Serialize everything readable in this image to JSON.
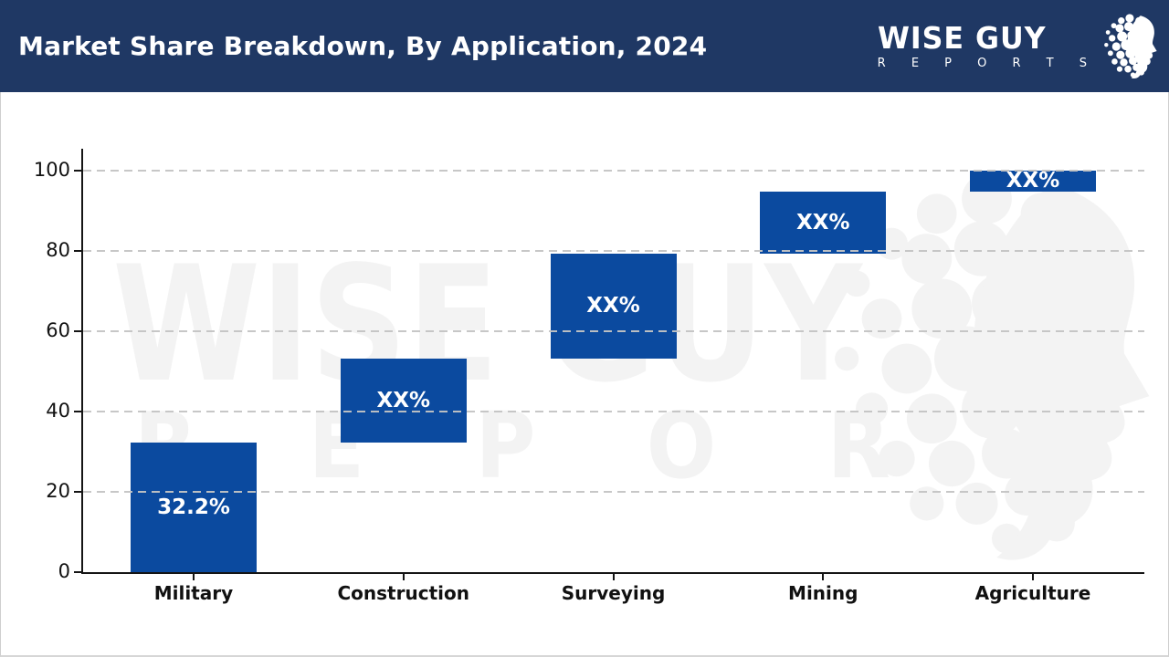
{
  "header": {
    "title": "Market Share Breakdown, By Application, 2024",
    "bg_color": "#1f3864",
    "logo": {
      "line1": "WISE GUY",
      "line2": "R E P O R T S"
    }
  },
  "watermark": {
    "line1": "WISE GUY",
    "line2": "R E P O R T S"
  },
  "chart_data": {
    "type": "bar",
    "subtype": "waterfall",
    "title": "Market Share Breakdown, By Application, 2024",
    "categories": [
      "Military",
      "Construction",
      "Surveying",
      "Mining",
      "Agriculture"
    ],
    "segments": [
      {
        "category": "Military",
        "start": 0,
        "end": 32.2,
        "label": "32.2%"
      },
      {
        "category": "Construction",
        "start": 32.2,
        "end": 53.2,
        "label": "XX%"
      },
      {
        "category": "Surveying",
        "start": 53.2,
        "end": 79.4,
        "label": "XX%"
      },
      {
        "category": "Mining",
        "start": 79.4,
        "end": 94.8,
        "label": "XX%"
      },
      {
        "category": "Agriculture",
        "start": 94.8,
        "end": 100,
        "label": "XX%"
      }
    ],
    "yticks": [
      0,
      20,
      40,
      60,
      80,
      100
    ],
    "ylim": [
      0,
      105.5
    ],
    "xlabel": "",
    "ylabel": "",
    "grid": true,
    "grid_axis": "y",
    "grid_style": "dashed",
    "legend": false,
    "bar_color": "#0b4a9f",
    "bar_label_color": "#ffffff",
    "axis_color": "#151515",
    "grid_color": "#c4c4c4"
  }
}
